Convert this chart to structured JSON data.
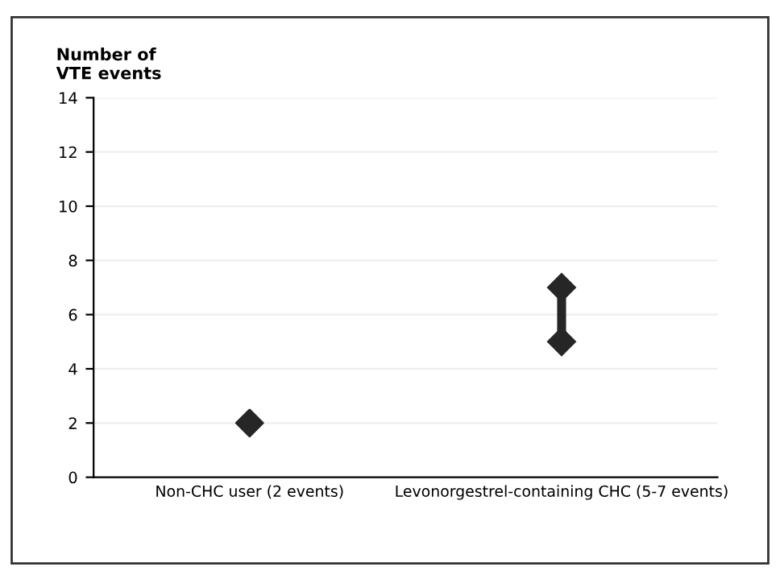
{
  "chart_data": {
    "type": "scatter",
    "ylabel": "Number of\nVTE events",
    "categories": [
      "Non-CHC user (2 events)",
      "Levonorgestrel-containing CHC (5-7 events)"
    ],
    "series": [
      {
        "color": "#262626",
        "x": [
          "Non-CHC user (2 events)"
        ],
        "values": [
          2
        ]
      },
      {
        "type": "line",
        "color": "#262626",
        "x": [
          "Levonorgestrel-containing CHC (5-7 events)",
          "Levonorgestrel-containing CHC (5-7 events)"
        ],
        "values": [
          5,
          7
        ]
      }
    ],
    "ylim": [
      0,
      14
    ],
    "yticks": [
      0,
      2,
      4,
      6,
      8,
      10,
      12,
      14
    ],
    "grid": "y",
    "marker": "diamond",
    "legend": false
  }
}
